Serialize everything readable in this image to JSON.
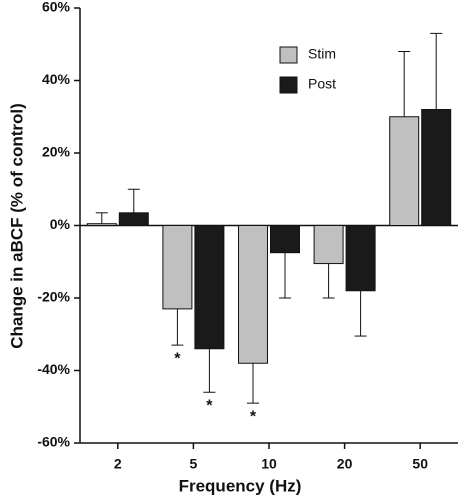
{
  "chart_data": {
    "type": "bar",
    "x_label": "Frequency (Hz)",
    "y_label": "Change in aBCF (% of control)",
    "categories": [
      "2",
      "5",
      "10",
      "20",
      "50"
    ],
    "series": [
      {
        "name": "Stim",
        "color": "#c0c0c0",
        "values": [
          0.5,
          -23,
          -38,
          -10.5,
          30
        ],
        "errors": [
          3,
          10,
          11,
          9.5,
          18
        ],
        "markers": [
          null,
          "*",
          "*",
          null,
          null
        ]
      },
      {
        "name": "Post",
        "color": "#1a1a1a",
        "values": [
          3.5,
          -34,
          -7.5,
          -18,
          32
        ],
        "errors": [
          6.5,
          12,
          12.5,
          12.5,
          21
        ],
        "markers": [
          null,
          "*",
          null,
          null,
          null
        ]
      }
    ],
    "ylim": [
      -60,
      60
    ],
    "yticks": [
      {
        "value": -60,
        "label": "-60%"
      },
      {
        "value": -40,
        "label": "-40%"
      },
      {
        "value": -20,
        "label": "-20%"
      },
      {
        "value": 0,
        "label": "0%"
      },
      {
        "value": 20,
        "label": "20%"
      },
      {
        "value": 40,
        "label": "40%"
      },
      {
        "value": 60,
        "label": "60%"
      }
    ],
    "legend": "top-right"
  }
}
